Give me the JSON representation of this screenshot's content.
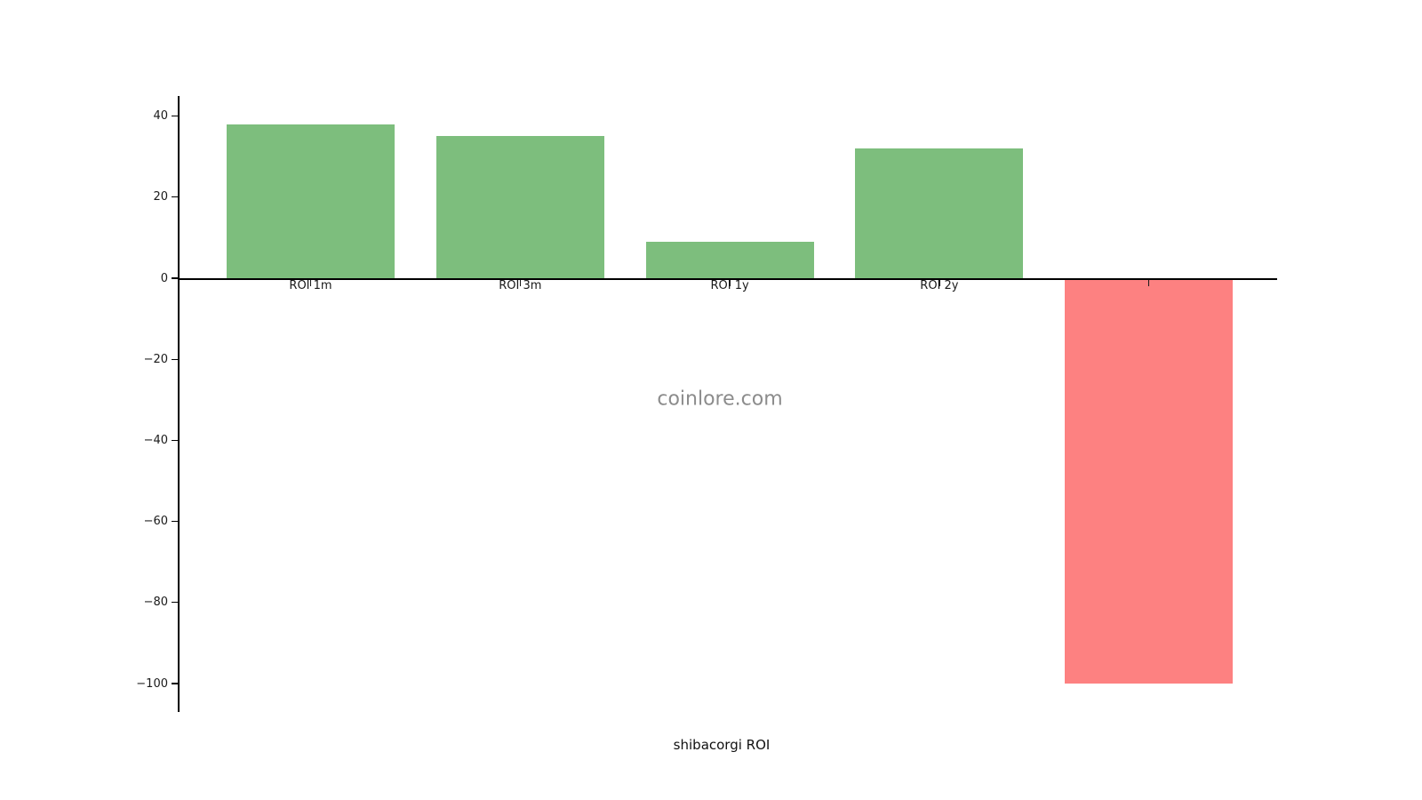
{
  "page": {
    "background_color": "#ffffff"
  },
  "chart_data": {
    "type": "bar",
    "categories": [
      "ROI 1m",
      "ROI 3m",
      "ROI 1y",
      "ROI 2y",
      ""
    ],
    "values": [
      38,
      35,
      9,
      32,
      -100
    ],
    "bar_colors": [
      "#7dbe7d",
      "#7dbe7d",
      "#7dbe7d",
      "#7dbe7d",
      "#fd8181"
    ],
    "positive_color": "#7dbe7d",
    "negative_color": "#fd8181",
    "title": "shibacorgi ROI",
    "watermark": "coinlore.com",
    "xlabel": "",
    "ylabel": "",
    "yticks": [
      40,
      20,
      0,
      -20,
      -40,
      -60,
      -80,
      -100
    ],
    "ytick_labels": [
      "40",
      "20",
      "0",
      "−20",
      "−40",
      "−60",
      "−80",
      "−100"
    ],
    "ylim": [
      -107,
      45
    ],
    "grid": false,
    "legend": "none",
    "axis_color": "#000000",
    "tick_label_color": "#1a1a1a",
    "watermark_color": "#8c8c8c"
  }
}
